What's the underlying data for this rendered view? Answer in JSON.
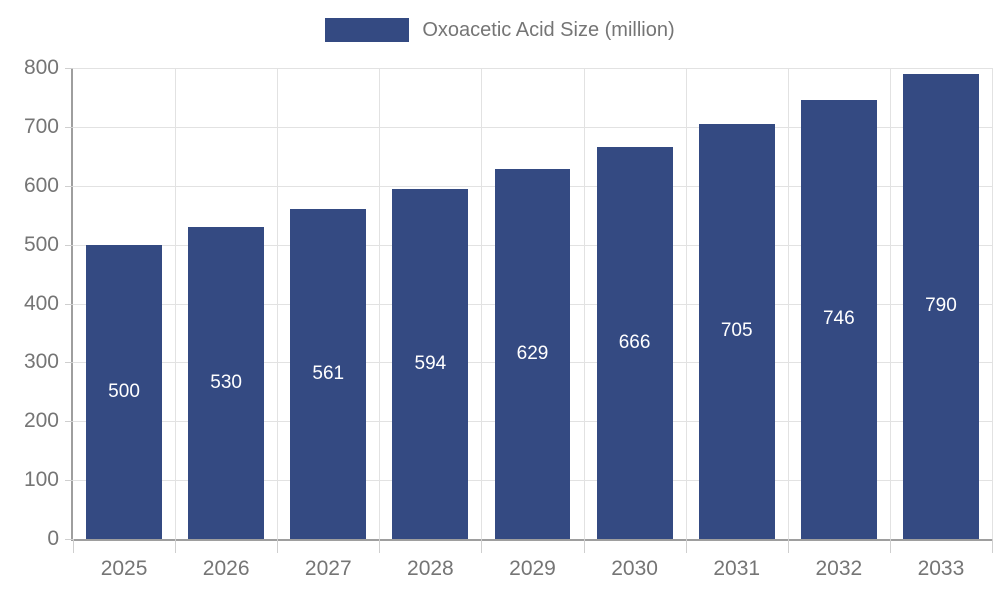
{
  "legend": {
    "label": "Oxoacetic Acid Size (million)"
  },
  "chart_data": {
    "type": "bar",
    "title": "Oxoacetic Acid Size (million)",
    "series_name": "Oxoacetic Acid Size (million)",
    "categories": [
      "2025",
      "2026",
      "2027",
      "2028",
      "2029",
      "2030",
      "2031",
      "2032",
      "2033"
    ],
    "values": [
      500,
      530,
      561,
      594,
      629,
      666,
      705,
      746,
      790
    ],
    "xlabel": "",
    "ylabel": "",
    "ylim": [
      0,
      800
    ],
    "yticks": [
      0,
      100,
      200,
      300,
      400,
      500,
      600,
      700,
      800
    ],
    "grid": true,
    "legend_position": "top-center",
    "value_label_position": "inside-center",
    "colors": {
      "bar": "#344a82",
      "axis_text": "#757575",
      "legend_text": "#757575",
      "value_label": "#ffffff",
      "gridline": "#e2e2e2",
      "axis_line": "#9e9e9e",
      "tick": "#cfcfcf",
      "background": "#ffffff"
    }
  }
}
